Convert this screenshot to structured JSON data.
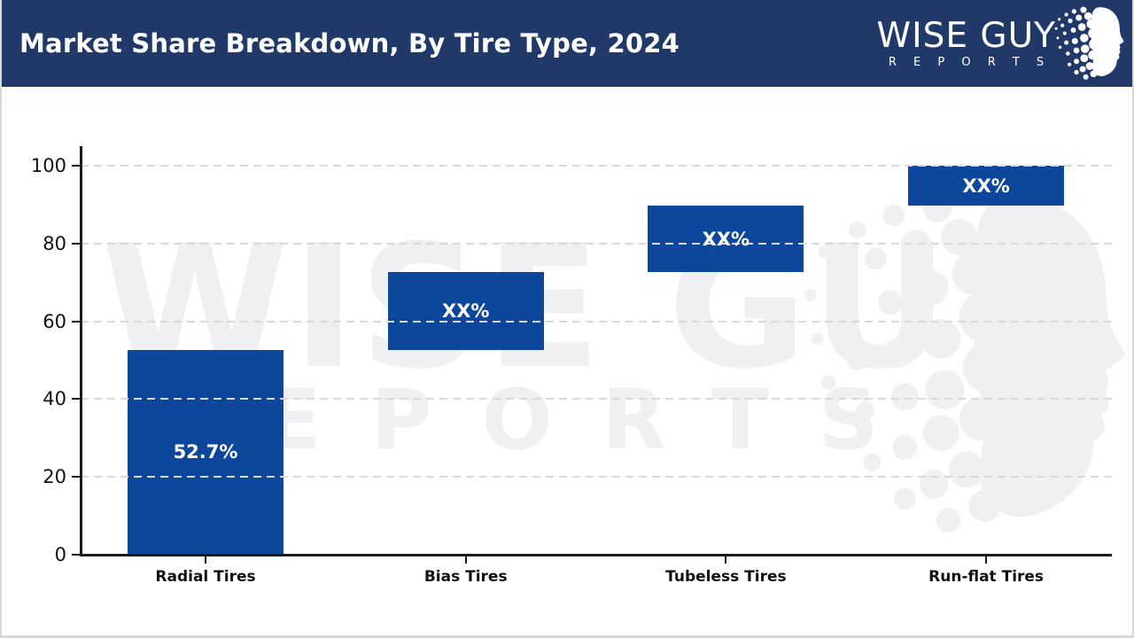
{
  "header": {
    "title": "Market Share Breakdown, By Tire Type, 2024",
    "logo": {
      "name": "WISE GUY",
      "subname": "R E P O R T S"
    }
  },
  "watermark": {
    "line1": "WISE GUY",
    "line2": "REPORTS"
  },
  "colors": {
    "header_bg": "#213968",
    "title_text": "#ffffff",
    "bar": "#0c479b",
    "bar_label": "#ffffff",
    "grid": "#d9d9d9",
    "axis": "#1a1a1a",
    "watermark": "#f0f0f2",
    "border": "#d8d8d8"
  },
  "chart_data": {
    "type": "bar",
    "subtype": "waterfall",
    "title": "Market Share Breakdown, By Tire Type, 2024",
    "categories": [
      "Radial Tires",
      "Bias Tires",
      "Tubeless Tires",
      "Run-flat Tires"
    ],
    "bar_labels": [
      "52.7%",
      "XX%",
      "XX%",
      "XX%"
    ],
    "segments": [
      {
        "category": "Radial Tires",
        "start": 0,
        "end": 52.7,
        "label": "52.7%"
      },
      {
        "category": "Bias Tires",
        "start": 52.7,
        "end": 72.7,
        "label": "XX%",
        "value_estimated": 20.0
      },
      {
        "category": "Tubeless Tires",
        "start": 72.7,
        "end": 89.7,
        "label": "XX%",
        "value_estimated": 17.0
      },
      {
        "category": "Run-flat Tires",
        "start": 89.7,
        "end": 100.0,
        "label": "XX%",
        "value_estimated": 10.3
      }
    ],
    "yticks": [
      0,
      20,
      40,
      60,
      80,
      100
    ],
    "ylim": [
      0,
      105
    ],
    "grid": "dashed-horizontal",
    "gridlines_above_bars": true,
    "legend": null
  }
}
